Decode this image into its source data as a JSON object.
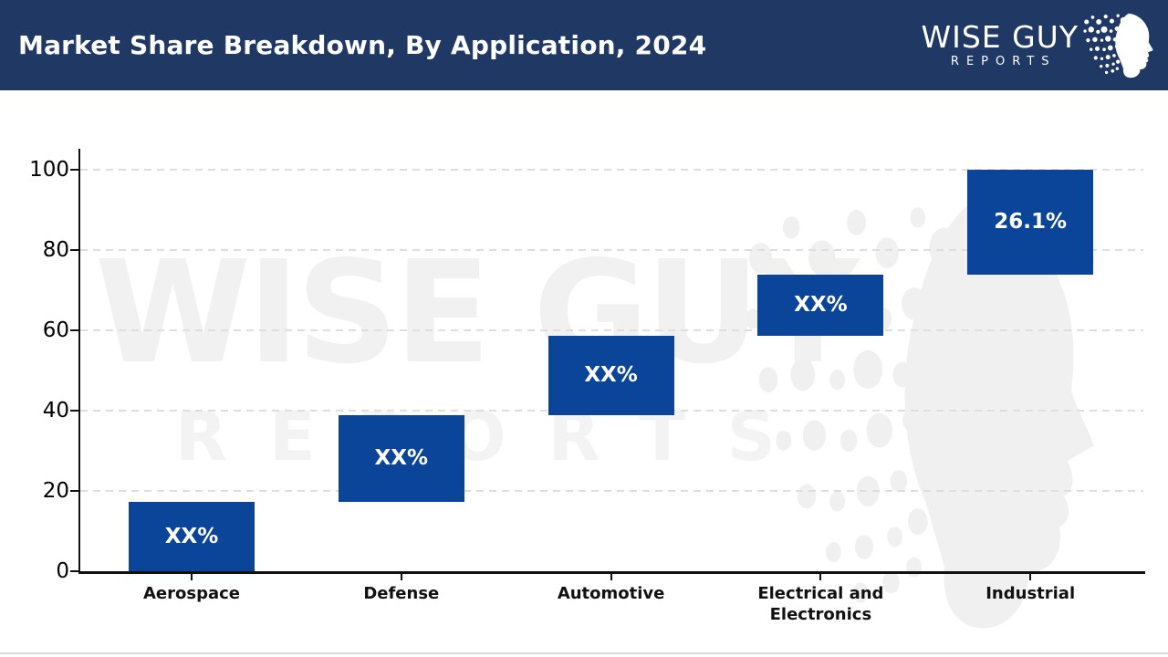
{
  "header": {
    "title": "Market Share Breakdown, By Application, 2024",
    "logo": {
      "primary": "WISE GUY",
      "secondary": "REPORTS"
    }
  },
  "watermark": {
    "primary": "WISE GUY",
    "secondary": "REPORTS"
  },
  "chart_data": {
    "type": "bar",
    "subtype": "floating-waterfall",
    "title": "Market Share Breakdown, By Application, 2024",
    "categories": [
      "Aerospace",
      "Defense",
      "Automotive",
      "Electrical and Electronics",
      "Industrial"
    ],
    "bars": [
      {
        "category": "Aerospace",
        "start": 0,
        "end": 17.3,
        "label": "XX%"
      },
      {
        "category": "Defense",
        "start": 17.3,
        "end": 38.9,
        "label": "XX%"
      },
      {
        "category": "Automotive",
        "start": 38.9,
        "end": 58.7,
        "label": "XX%"
      },
      {
        "category": "Electrical and Electronics",
        "start": 58.7,
        "end": 73.9,
        "label": "XX%"
      },
      {
        "category": "Industrial",
        "start": 73.9,
        "end": 100,
        "label": "26.1%"
      }
    ],
    "xlabel": "",
    "ylabel": "",
    "ylim": [
      0,
      100
    ],
    "yticks": [
      0,
      20,
      40,
      60,
      80,
      100
    ],
    "grid": {
      "horizontal": true,
      "style": "dashed"
    },
    "legend": "none",
    "bar_color": "#0b4599",
    "bar_label_color": "#ffffff",
    "header_color": "#1f3864"
  }
}
